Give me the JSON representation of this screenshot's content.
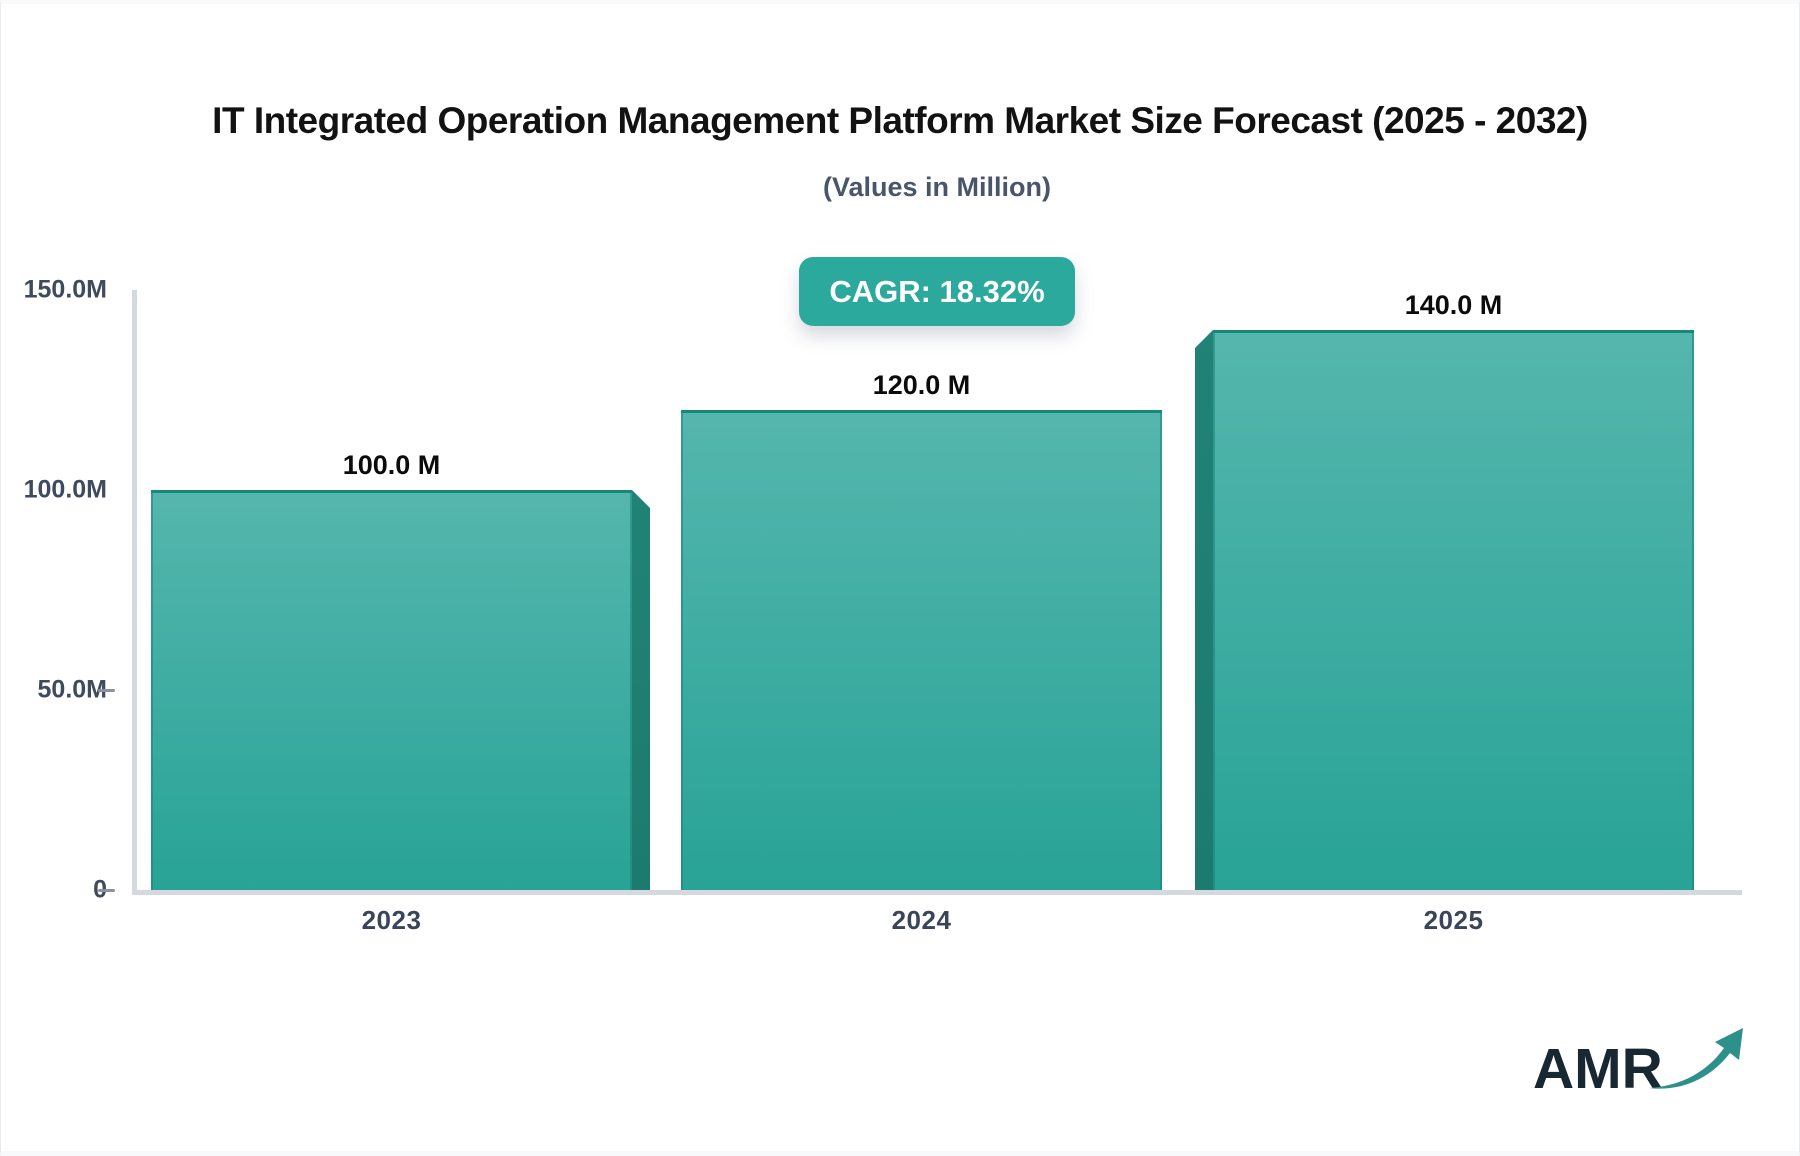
{
  "title": "IT Integrated Operation Management Platform Market Size Forecast (2025 - 2032)",
  "subtitle": "(Values in Million)",
  "badge": {
    "label": "CAGR: 18.32%"
  },
  "logo": {
    "text": "AMR",
    "arrow_icon": "growth-arrow-icon"
  },
  "chart_data": {
    "type": "bar",
    "title": "IT Integrated Operation Management Platform Market Size Forecast (2025 - 2032)",
    "subtitle": "(Values in Million)",
    "unit": "Million",
    "cagr_percent": 18.32,
    "categories": [
      "2023",
      "2024",
      "2025"
    ],
    "values": [
      100.0,
      120.0,
      140.0
    ],
    "bar_value_labels": [
      "100.0 M",
      "120.0 M",
      "140.0 M"
    ],
    "y_axis": {
      "min": 0,
      "max": 150,
      "ticks": [
        {
          "value": 150,
          "label": "150.0M",
          "dash": false
        },
        {
          "value": 100,
          "label": "100.0M",
          "dash": false
        },
        {
          "value": 50,
          "label": "50.0M",
          "dash": true
        },
        {
          "value": 0,
          "label": "0",
          "dash": true
        }
      ]
    },
    "grid": false,
    "legend": false,
    "bar_3d_side": [
      "right",
      "none",
      "left"
    ],
    "colors": {
      "bar_gradient_top": "#55b6ad",
      "bar_gradient_bottom": "#28a396",
      "bar_top_border": "#17897c",
      "bar_edge_line": "#1f8a7d",
      "bar_3d_side_color": "#208376",
      "bar_3d_side_color_dark": "#1d7a6e",
      "axis_line": "#d5d8de",
      "tick_dash": "#8b93a2",
      "axis_text": "#3e4a5e",
      "category_text": "#3a4559",
      "value_label_text": "#0b0b0b",
      "title_text": "#121212",
      "subtitle_text": "#49556b",
      "badge_background": "#2ba99c",
      "badge_text": "#ffffff",
      "logo_text_color": "#182832",
      "logo_arrow_color": "#2e908a"
    }
  }
}
